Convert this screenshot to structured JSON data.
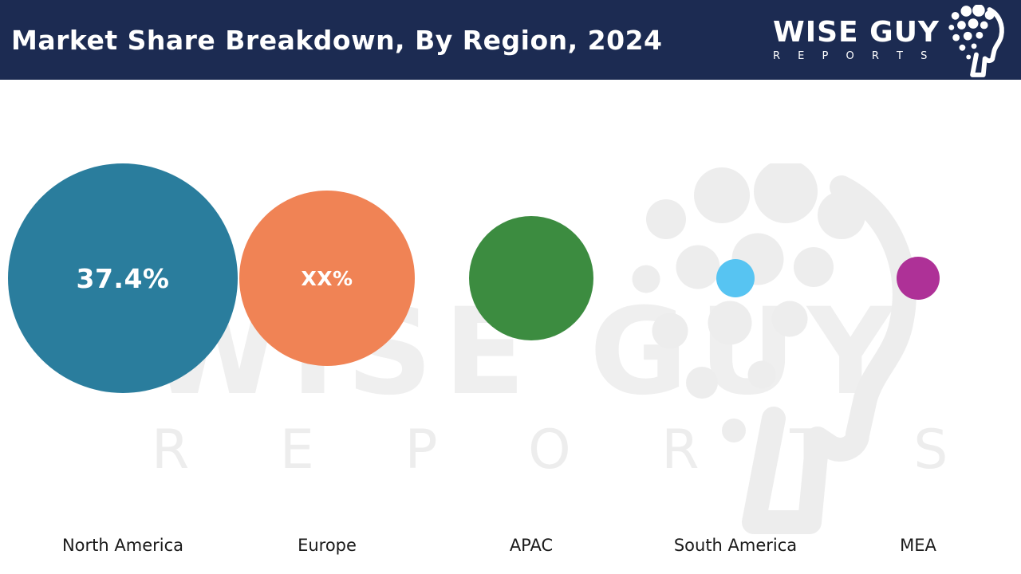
{
  "header": {
    "title": "Market Share Breakdown, By Region, 2024",
    "bg_color": "#1c2b52",
    "logo": {
      "name_top": "WISE GUY",
      "name_bottom": "R E P O R T S"
    }
  },
  "watermark": {
    "line1": "WISE GUY",
    "line2": "R E P O R T S"
  },
  "chart_data": {
    "type": "bubble",
    "title": "Market Share Breakdown, By Region, 2024",
    "categories": [
      "North America",
      "Europe",
      "APAC",
      "South America",
      "MEA"
    ],
    "bubbles": [
      {
        "label": "North America",
        "value": 37.4,
        "value_label": "37.4%",
        "color": "#2a7d9d",
        "radius_px": 144
      },
      {
        "label": "Europe",
        "value": null,
        "value_label": "XX%",
        "color": "#f08355",
        "radius_px": 110
      },
      {
        "label": "APAC",
        "value": null,
        "value_label": "",
        "color": "#3c8c40",
        "radius_px": 78
      },
      {
        "label": "South America",
        "value": null,
        "value_label": "",
        "color": "#57c4f2",
        "radius_px": 24
      },
      {
        "label": "MEA",
        "value": null,
        "value_label": "",
        "color": "#ae3197",
        "radius_px": 27
      }
    ],
    "legend_position": "bottom",
    "axis": "none"
  }
}
